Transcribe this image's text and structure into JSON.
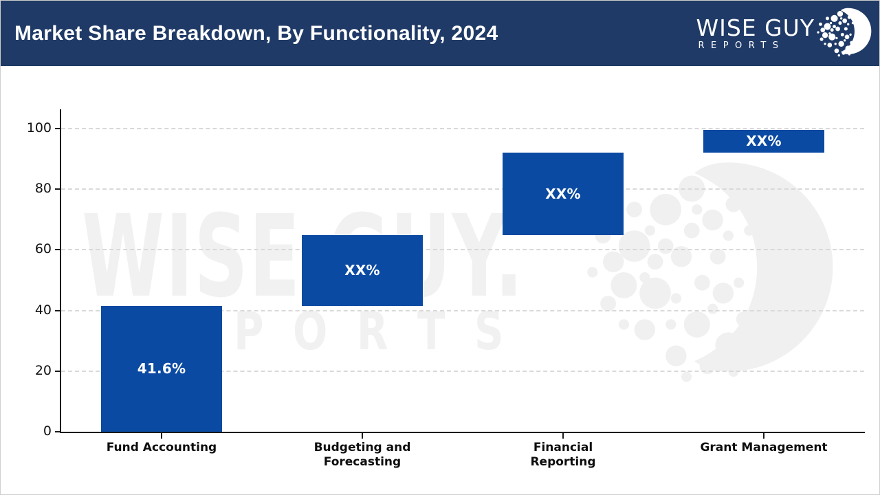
{
  "header": {
    "title": "Market Share Breakdown, By Functionality, 2024",
    "bg_color": "#1f3a66",
    "logo": {
      "wordmark": "WISE GUY",
      "subtitle": "REPORTS"
    }
  },
  "watermark": {
    "line1": "WISE GUY.",
    "line2": "R E P O R T S"
  },
  "chart_data": {
    "type": "bar",
    "subtype": "waterfall-floating-bars",
    "title": "Market Share Breakdown, By Functionality, 2024",
    "categories": [
      [
        "Fund Accounting"
      ],
      [
        "Budgeting and",
        "Forecasting"
      ],
      [
        "Financial",
        "Reporting"
      ],
      [
        "Grant Management"
      ]
    ],
    "segments": [
      {
        "start": 0,
        "end": 41.6
      },
      {
        "start": 41.6,
        "end": 64.9
      },
      {
        "start": 64.9,
        "end": 92.1
      },
      {
        "start": 92.1,
        "end": 99.6
      }
    ],
    "bar_labels": [
      "41.6%",
      "XX%",
      "XX%",
      "XX%"
    ],
    "ylabel": "",
    "xlabel": "",
    "yticks": [
      0,
      20,
      40,
      60,
      80,
      100
    ],
    "ylim": [
      0,
      100
    ],
    "grid": "horizontal-dashed",
    "bar_color": "#0b4aa2",
    "bar_label_color": "#ffffff",
    "grid_color": "#d9d9d9",
    "axis_color": "#1a1a1a"
  }
}
